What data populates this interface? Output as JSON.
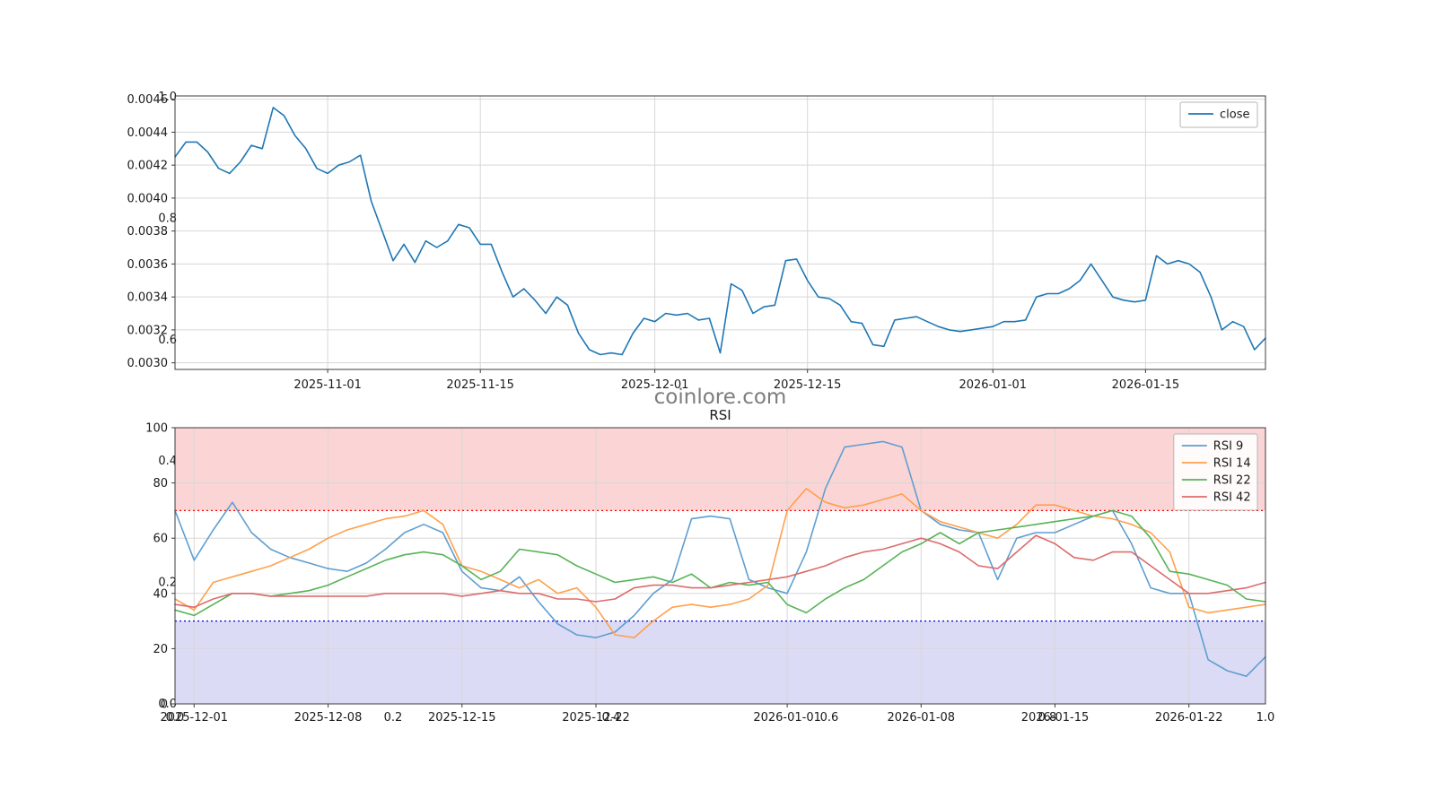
{
  "watermark": "coinlore.com",
  "style": {
    "text": "#1a1a1a",
    "spine": "#3c3c3c",
    "grid": "#d7d7d7",
    "legend_border": "#b5b5b5",
    "background": "#ffffff"
  },
  "hidden_axes": {
    "yticks": [
      "1.0",
      "0.8",
      "0.6",
      "0.4",
      "0.2",
      "0.0"
    ],
    "xticks": [
      "0.0",
      "0.2",
      "0.4",
      "0.6",
      "0.8",
      "1.0"
    ]
  },
  "chart_data": [
    {
      "name": "price",
      "type": "line",
      "title": "",
      "xlabel": "",
      "ylabel": "",
      "grid": true,
      "legend_position": "upper right",
      "ylim": [
        0.00296,
        0.00462
      ],
      "yticks": [
        0.003,
        0.0032,
        0.0034,
        0.0036,
        0.0038,
        0.004,
        0.0042,
        0.0044,
        0.0046
      ],
      "ytick_labels": [
        "0.0030",
        "0.0032",
        "0.0034",
        "0.0036",
        "0.0038",
        "0.0040",
        "0.0042",
        "0.0044",
        "0.0046"
      ],
      "xticks": [
        {
          "label": "2025-11-01",
          "pos": 0.14
        },
        {
          "label": "2025-11-15",
          "pos": 0.28
        },
        {
          "label": "2025-12-01",
          "pos": 0.44
        },
        {
          "label": "2025-12-15",
          "pos": 0.58
        },
        {
          "label": "2026-01-01",
          "pos": 0.75
        },
        {
          "label": "2026-01-15",
          "pos": 0.89
        }
      ],
      "series": [
        {
          "name": "close",
          "color": "#1f77b4",
          "values": [
            0.00425,
            0.00434,
            0.00434,
            0.00428,
            0.00418,
            0.00415,
            0.00422,
            0.00432,
            0.0043,
            0.00455,
            0.0045,
            0.00438,
            0.0043,
            0.00418,
            0.00415,
            0.0042,
            0.00422,
            0.00426,
            0.00398,
            0.0038,
            0.00362,
            0.00372,
            0.00361,
            0.00374,
            0.0037,
            0.00374,
            0.00384,
            0.00382,
            0.00372,
            0.00372,
            0.00355,
            0.0034,
            0.00345,
            0.00338,
            0.0033,
            0.0034,
            0.00335,
            0.00318,
            0.00308,
            0.00305,
            0.00306,
            0.00305,
            0.00318,
            0.00327,
            0.00325,
            0.0033,
            0.00329,
            0.0033,
            0.00326,
            0.00327,
            0.00306,
            0.00348,
            0.00344,
            0.0033,
            0.00334,
            0.00335,
            0.00362,
            0.00363,
            0.0035,
            0.0034,
            0.00339,
            0.00335,
            0.00325,
            0.00324,
            0.00311,
            0.0031,
            0.00326,
            0.00327,
            0.00328,
            0.00325,
            0.00322,
            0.0032,
            0.00319,
            0.0032,
            0.00321,
            0.00322,
            0.00325,
            0.00325,
            0.00326,
            0.0034,
            0.00342,
            0.00342,
            0.00345,
            0.0035,
            0.0036,
            0.0035,
            0.0034,
            0.00338,
            0.00337,
            0.00338,
            0.00365,
            0.0036,
            0.00362,
            0.0036,
            0.00355,
            0.0034,
            0.0032,
            0.00325,
            0.00322,
            0.00308,
            0.00315
          ]
        }
      ]
    },
    {
      "name": "rsi",
      "type": "line",
      "title": "RSI",
      "xlabel": "",
      "ylabel": "",
      "grid": true,
      "legend_position": "upper right",
      "ylim": [
        0,
        100
      ],
      "yticks": [
        0,
        20,
        40,
        60,
        80,
        100
      ],
      "ytick_labels": [
        "0",
        "20",
        "40",
        "60",
        "80",
        "100"
      ],
      "xticks": [
        {
          "label": "2025-12-01",
          "pos": 0.0175
        },
        {
          "label": "2025-12-08",
          "pos": 0.1404
        },
        {
          "label": "2025-12-15",
          "pos": 0.2632
        },
        {
          "label": "2025-12-22",
          "pos": 0.386
        },
        {
          "label": "2026-01-01",
          "pos": 0.5614
        },
        {
          "label": "2026-01-08",
          "pos": 0.6842
        },
        {
          "label": "2026-01-15",
          "pos": 0.807
        },
        {
          "label": "2026-01-22",
          "pos": 0.9298
        }
      ],
      "bands": [
        {
          "from": 70,
          "to": 100,
          "color": "#fbd5d5"
        },
        {
          "from": 0,
          "to": 30,
          "color": "#dbdbf5"
        }
      ],
      "hlines": [
        {
          "y": 70,
          "color": "#ff0000"
        },
        {
          "y": 30,
          "color": "#0000cc"
        }
      ],
      "series": [
        {
          "name": "RSI 9",
          "color": "#5f9ed1",
          "values": [
            70,
            52,
            63,
            73,
            62,
            56,
            53,
            51,
            49,
            48,
            51,
            56,
            62,
            65,
            62,
            48,
            42,
            41,
            46,
            37,
            29,
            25,
            24,
            26,
            32,
            40,
            45,
            67,
            68,
            67,
            45,
            42,
            40,
            55,
            78,
            93,
            94,
            95,
            93,
            70,
            65,
            63,
            62,
            45,
            60,
            62,
            62,
            65,
            68,
            70,
            58,
            42,
            40,
            40,
            16,
            12,
            10,
            17
          ]
        },
        {
          "name": "RSI 14",
          "color": "#ffa04d",
          "values": [
            38,
            34,
            44,
            46,
            48,
            50,
            53,
            56,
            60,
            63,
            65,
            67,
            68,
            70,
            65,
            50,
            48,
            45,
            42,
            45,
            40,
            42,
            35,
            25,
            24,
            30,
            35,
            36,
            35,
            36,
            38,
            43,
            70,
            78,
            73,
            71,
            72,
            74,
            76,
            70,
            66,
            64,
            62,
            60,
            65,
            72,
            72,
            70,
            68,
            67,
            65,
            62,
            55,
            35,
            33,
            34,
            35,
            36
          ]
        },
        {
          "name": "RSI 22",
          "color": "#57b357",
          "values": [
            34,
            32,
            36,
            40,
            40,
            39,
            40,
            41,
            43,
            46,
            49,
            52,
            54,
            55,
            54,
            50,
            45,
            48,
            56,
            55,
            54,
            50,
            47,
            44,
            45,
            46,
            44,
            47,
            42,
            44,
            43,
            44,
            36,
            33,
            38,
            42,
            45,
            50,
            55,
            58,
            62,
            58,
            62,
            63,
            64,
            65,
            66,
            67,
            68,
            70,
            68,
            60,
            48,
            47,
            45,
            43,
            38,
            37
          ]
        },
        {
          "name": "RSI 42",
          "color": "#dd6b6b",
          "values": [
            36,
            35,
            38,
            40,
            40,
            39,
            39,
            39,
            39,
            39,
            39,
            40,
            40,
            40,
            40,
            39,
            40,
            41,
            40,
            40,
            38,
            38,
            37,
            38,
            42,
            43,
            43,
            42,
            42,
            43,
            44,
            45,
            46,
            48,
            50,
            53,
            55,
            56,
            58,
            60,
            58,
            55,
            50,
            49,
            55,
            61,
            58,
            53,
            52,
            55,
            55,
            50,
            45,
            40,
            40,
            41,
            42,
            44
          ]
        }
      ]
    }
  ]
}
